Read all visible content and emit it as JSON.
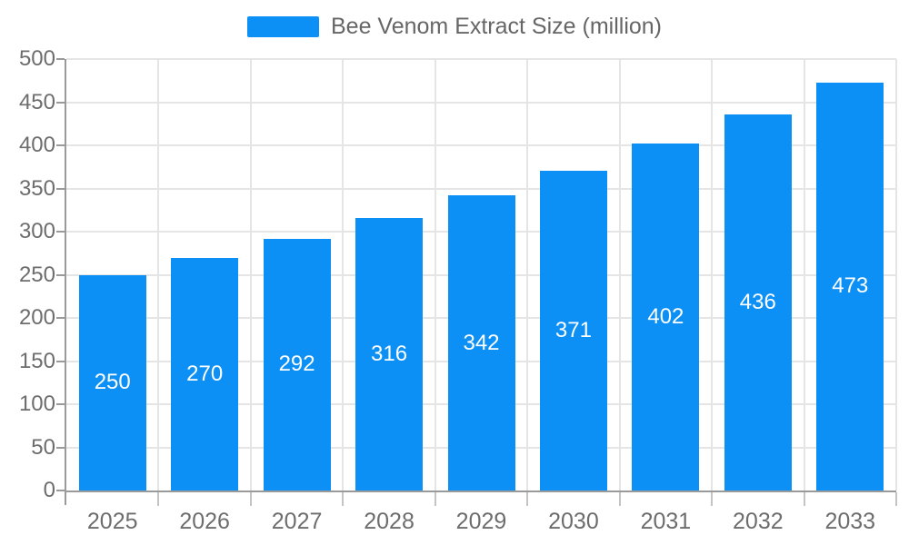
{
  "chart_data": {
    "type": "bar",
    "title": "",
    "legend": "Bee Venom Extract Size (million)",
    "legend_position": "top",
    "categories": [
      "2025",
      "2026",
      "2027",
      "2028",
      "2029",
      "2030",
      "2031",
      "2032",
      "2033"
    ],
    "values": [
      250,
      270,
      292,
      316,
      342,
      371,
      402,
      436,
      473
    ],
    "series": [
      {
        "name": "Bee Venom Extract Size (million)",
        "values": [
          250,
          270,
          292,
          316,
          342,
          371,
          402,
          436,
          473
        ]
      }
    ],
    "xlabel": "",
    "ylabel": "",
    "ylim": [
      0,
      500
    ],
    "ytick_step": 50,
    "ytick_labels": [
      "0",
      "50",
      "100",
      "150",
      "200",
      "250",
      "300",
      "350",
      "400",
      "450",
      "500"
    ],
    "grid": true,
    "bar_labels_inside": true,
    "colors": {
      "bar": "#0d90f5",
      "bar_label": "#ffffff",
      "axis_text": "#6d6d6d",
      "legend_text": "#666666",
      "grid_line": "#e5e5e5",
      "axis_line": "#9a9a9a",
      "minor_tick": "#c4c4c4",
      "background": "#ffffff"
    }
  }
}
